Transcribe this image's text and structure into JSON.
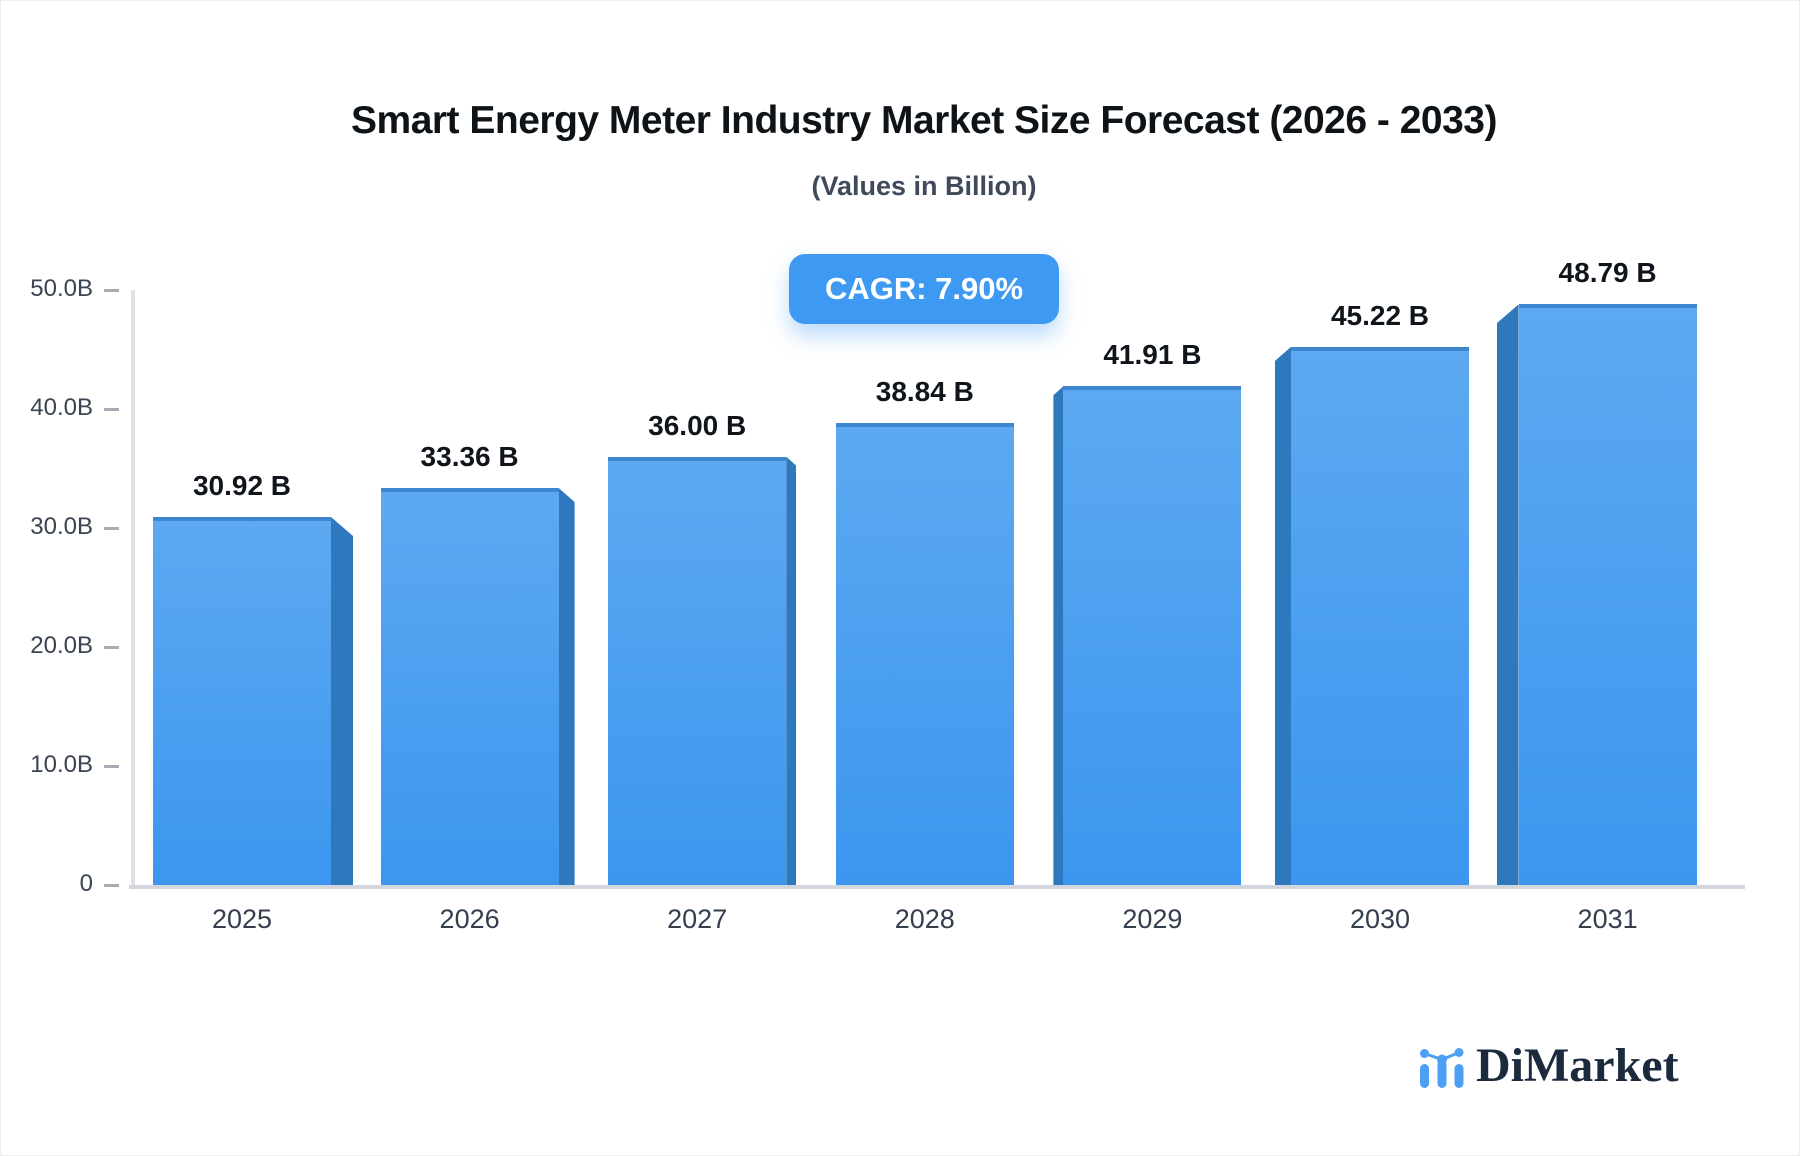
{
  "header": {
    "title": "Smart Energy Meter Industry Market Size Forecast (2026 - 2033)",
    "subtitle": "(Values in Billion)",
    "cagr_badge": "CAGR: 7.90%"
  },
  "chart_data": {
    "type": "bar",
    "title": "Smart Energy Meter Industry Market Size Forecast (2026 - 2033)",
    "subtitle": "(Values in Billion)",
    "categories": [
      "2025",
      "2026",
      "2027",
      "2028",
      "2029",
      "2030",
      "2031"
    ],
    "values": [
      30.92,
      33.36,
      36.0,
      38.84,
      41.91,
      45.22,
      48.79
    ],
    "value_labels": [
      "30.92 B",
      "33.36 B",
      "36.00 B",
      "38.84 B",
      "41.91 B",
      "45.22 B",
      "48.79 B"
    ],
    "cagr": "7.90%",
    "xlabel": "",
    "ylabel": "",
    "ylim": [
      0,
      50
    ],
    "ytick_labels_top_down": [
      "50.0B",
      "40.0B",
      "30.0B",
      "20.0B",
      "10.0B",
      "0"
    ],
    "grid": false,
    "legend": false,
    "bar_style": "3d-extruded-toward-center"
  },
  "colors": {
    "bar_face_top": "#5ca9f1",
    "bar_face_bottom": "#3c96ef",
    "bar_top_strip": "#3e86cf",
    "bar_side": "#2e78bd",
    "badge_blue": "#3d99f2",
    "axis_line": "#dee2e8",
    "baseline": "#d3d7dd",
    "tick_dash": "#a6adb6",
    "ytick_text": "#3a4453",
    "xtick_text": "#333e4f",
    "value_text": "#10151c",
    "logo_blue": "#4d9ff3",
    "logo_text": "#1c2a3e"
  },
  "branding": {
    "logo_text": "DiMarket",
    "logo_icon": "mini-bar-chart-icon"
  }
}
